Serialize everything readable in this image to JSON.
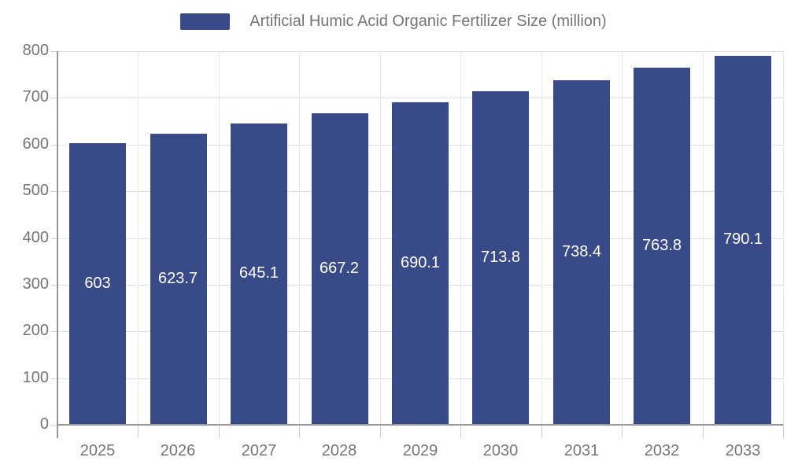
{
  "legend": {
    "label": "Artificial Humic Acid Organic Fertilizer Size (million)"
  },
  "colors": {
    "bar": "#394A88",
    "axis_line": "#999999",
    "grid_line": "#E0E0E0",
    "boundary_line": "#E8E8E8",
    "tick_mark": "#CCCCCC",
    "tick_label": "#757575",
    "value_label": "#FFFFFF",
    "background": "#FFFFFF"
  },
  "chart_data": {
    "type": "bar",
    "title": "Artificial Humic Acid Organic Fertilizer Size (million)",
    "categories": [
      "2025",
      "2026",
      "2027",
      "2028",
      "2029",
      "2030",
      "2031",
      "2032",
      "2033"
    ],
    "values": [
      603,
      623.7,
      645.1,
      667.2,
      690.1,
      713.8,
      738.4,
      763.8,
      790.1
    ],
    "value_labels": [
      "603",
      "623.7",
      "645.1",
      "667.2",
      "690.1",
      "713.8",
      "738.4",
      "763.8",
      "790.1"
    ],
    "series_name": "Artificial Humic Acid Organic Fertilizer Size (million)",
    "xlabel": "",
    "ylabel": "",
    "ylim": [
      0,
      800
    ],
    "y_ticks": [
      0,
      100,
      200,
      300,
      400,
      500,
      600,
      700,
      800
    ],
    "grid": true,
    "legend_position": "top",
    "bar_label_position": "inside-center"
  }
}
